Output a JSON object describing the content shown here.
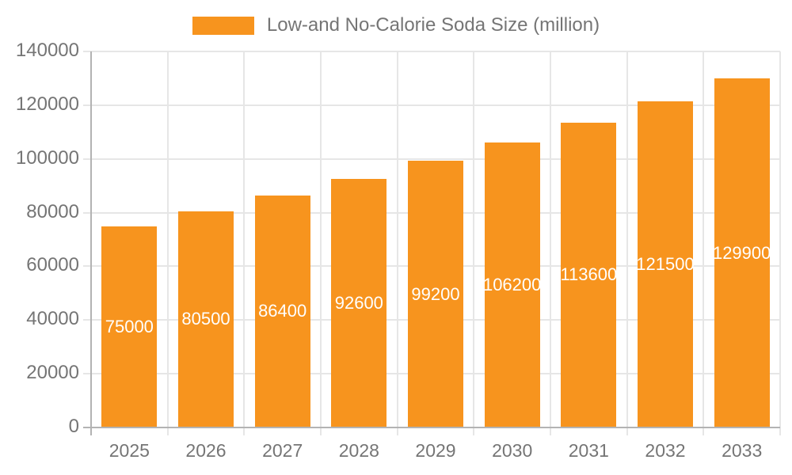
{
  "chart_data": {
    "type": "bar",
    "title": "Low-and No-Calorie Soda Size (million)",
    "legend": [
      "Low-and No-Calorie Soda Size (million)"
    ],
    "categories": [
      "2025",
      "2026",
      "2027",
      "2028",
      "2029",
      "2030",
      "2031",
      "2032",
      "2033"
    ],
    "series": [
      {
        "name": "Low-and No-Calorie Soda Size (million)",
        "values": [
          75000,
          80500,
          86400,
          92600,
          99200,
          106200,
          113600,
          121500,
          129900
        ]
      }
    ],
    "xlabel": "",
    "ylabel": "",
    "ylim": [
      0,
      140000
    ],
    "y_ticks": [
      0,
      20000,
      40000,
      60000,
      80000,
      100000,
      120000,
      140000
    ],
    "grid": true,
    "legend_position": "top-center",
    "bar_value_labels": "white text centered inside bars",
    "colors": {
      "bar": "#F7941E",
      "bar_label": "#FFFFFF",
      "axis_text": "#757575",
      "gridline": "#E6E6E6",
      "axis_line": "#B3B3B3",
      "background": "#FFFFFF"
    }
  }
}
